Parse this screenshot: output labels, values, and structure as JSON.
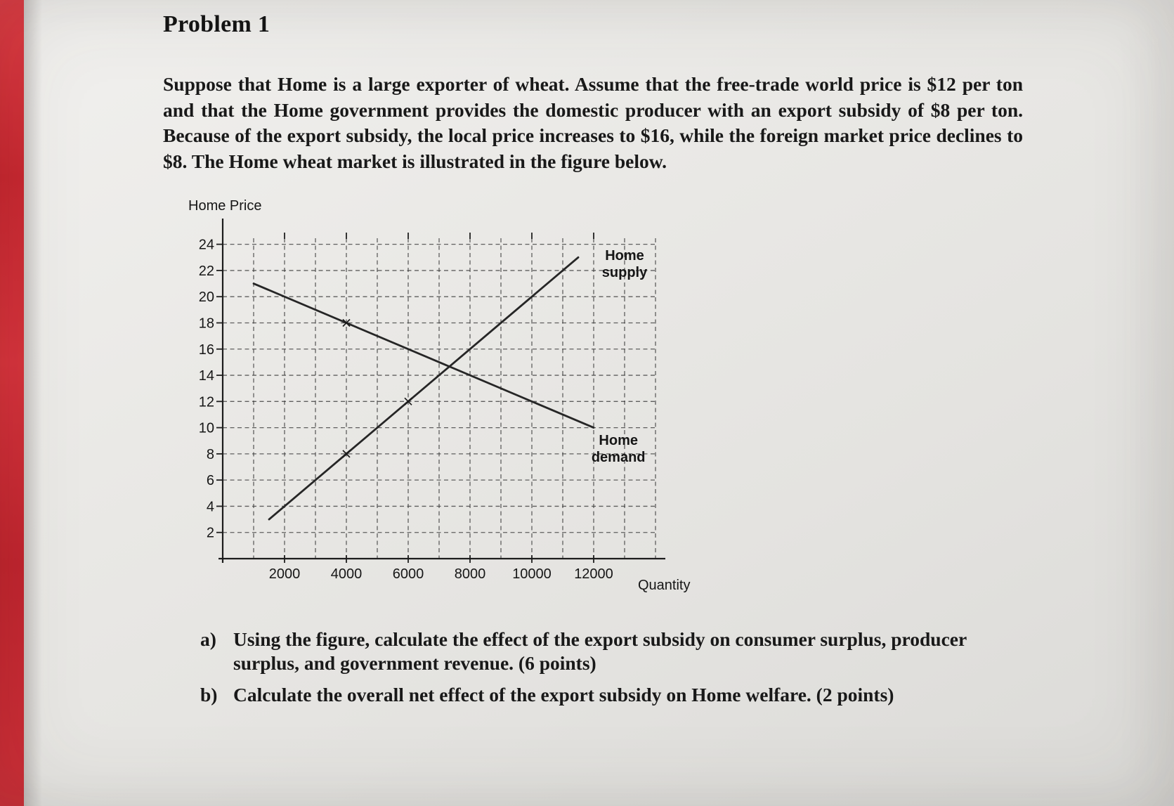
{
  "page": {
    "heading": "Problem 1"
  },
  "intro": {
    "text": "Suppose that Home is a large exporter of wheat. Assume that the free-trade world price is $12 per ton and that the Home government provides the domestic producer with an export subsidy of $8 per ton. Because of the export subsidy, the local price increases to $16, while the foreign market price declines to $8. The Home wheat market is illustrated in the figure below."
  },
  "questions": [
    {
      "label": "a)",
      "text": "Using the figure, calculate the effect of the export subsidy on consumer surplus, producer surplus, and government revenue. (6 points)"
    },
    {
      "label": "b)",
      "text": "Calculate the overall net effect of the export subsidy on Home welfare. (2 points)"
    }
  ],
  "chart_data": {
    "type": "line",
    "title": "",
    "ylabel": "Home Price",
    "xlabel": "Quantity",
    "xlim": [
      0,
      14000
    ],
    "ylim": [
      0,
      26
    ],
    "x_ticks": [
      2000,
      4000,
      6000,
      8000,
      10000,
      12000
    ],
    "y_ticks": [
      2,
      4,
      6,
      8,
      10,
      12,
      14,
      16,
      18,
      20,
      22,
      24
    ],
    "grid": true,
    "grid_x_step": 1000,
    "series": [
      {
        "name": "Home supply",
        "points": [
          [
            1500,
            3
          ],
          [
            11500,
            23
          ]
        ],
        "label_lines": [
          "Home",
          "supply"
        ],
        "label_pos": [
          13000,
          22.8
        ]
      },
      {
        "name": "Home demand",
        "points": [
          [
            1000,
            21
          ],
          [
            12000,
            10
          ]
        ],
        "label_lines": [
          "Home",
          "demand"
        ],
        "label_pos": [
          12800,
          8.7
        ]
      }
    ],
    "markers": [
      [
        4000,
        18
      ],
      [
        4000,
        8
      ],
      [
        6000,
        12
      ]
    ],
    "intersection": [
      7333,
      14.7
    ]
  }
}
